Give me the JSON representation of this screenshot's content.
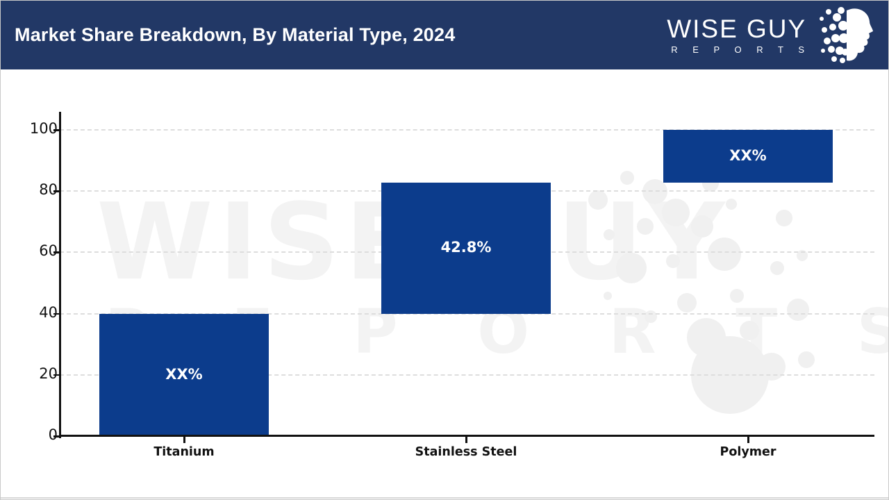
{
  "header": {
    "title": "Market Share Breakdown, By Material Type, 2024",
    "background": "#223866",
    "logo": {
      "name_top": "WISE GUY",
      "name_bottom": "R E P O R T S"
    }
  },
  "watermark": {
    "line1": "WISE GUY",
    "line2": "R E P O R T S"
  },
  "colors": {
    "header_bg": "#223866",
    "bar": "#0c3c8c",
    "grid": "#dddddd",
    "axis": "#111111",
    "watermark": "#f3f3f3"
  },
  "chart_data": {
    "type": "bar",
    "subtype": "waterfall-stacked-percentage",
    "title": "Market Share Breakdown, By Material Type, 2024",
    "categories": [
      "Titanium",
      "Stainless Steel",
      "Polymer"
    ],
    "series": [
      {
        "name": "Market Share",
        "segments": [
          {
            "category": "Titanium",
            "start": 0,
            "end": 40,
            "label": "XX%"
          },
          {
            "category": "Stainless Steel",
            "start": 40,
            "end": 82.8,
            "label": "42.8%"
          },
          {
            "category": "Polymer",
            "start": 82.8,
            "end": 100,
            "label": "XX%"
          }
        ]
      }
    ],
    "bar_labels": [
      "XX%",
      "42.8%",
      "XX%"
    ],
    "xlabel": "",
    "ylabel": "",
    "ylim": [
      0,
      106
    ],
    "yticks": [
      0,
      20,
      40,
      60,
      80,
      100
    ],
    "grid": "horizontal-dashed",
    "legend": "none",
    "bar_color": "#0c3c8c"
  }
}
